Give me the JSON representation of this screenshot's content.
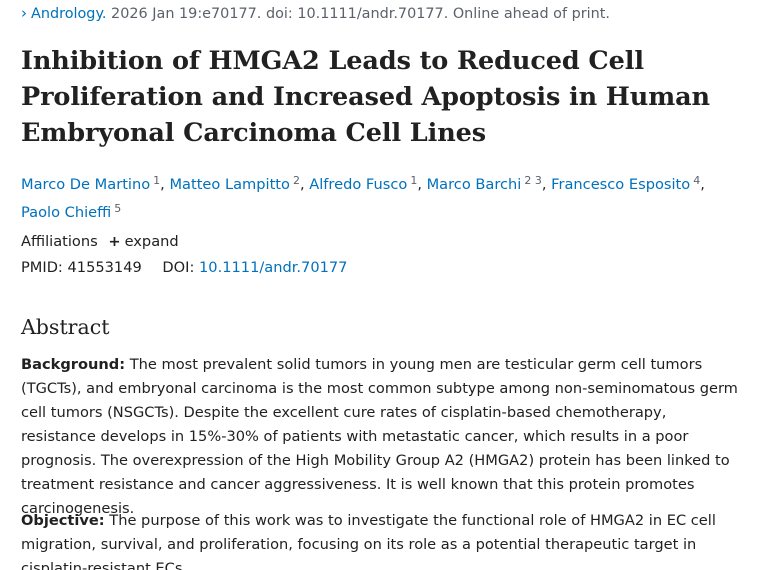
{
  "citation": {
    "chevron": "chevron-right-icon",
    "journal": "Andrology.",
    "details": " 2026 Jan 19:e70177. doi: 10.1111/andr.70177. Online ahead of print."
  },
  "title": "Inhibition of HMGA2 Leads to Reduced Cell Proliferation and Increased Apoptosis in Human Embryonal Carcinoma Cell Lines",
  "authors": [
    {
      "name": "Marco De Martino",
      "sup": "1"
    },
    {
      "name": "Matteo Lampitto",
      "sup": "2"
    },
    {
      "name": "Alfredo Fusco",
      "sup": "1"
    },
    {
      "name": "Marco Barchi",
      "sup": "2 3"
    },
    {
      "name": "Francesco Esposito",
      "sup": "4"
    },
    {
      "name": "Paolo Chieffi",
      "sup": "5"
    }
  ],
  "affiliations": {
    "label": "Affiliations",
    "expand_label": "expand"
  },
  "identifiers": {
    "pmid_label": "PMID:",
    "pmid": "41553149",
    "doi_label": "DOI:",
    "doi": "10.1111/andr.70177"
  },
  "abstract": {
    "heading": "Abstract",
    "background_label": "Background:",
    "background_text": " The most prevalent solid tumors in young men are testicular germ cell tumors (TGCTs), and embryonal carcinoma is the most common subtype among non-seminomatous germ cell tumors (NSGCTs). Despite the excellent cure rates of cisplatin-based chemotherapy, resistance develops in 15%-30% of patients with metastatic cancer, which results in a poor prognosis. The overexpression of the High Mobility Group A2 (HMGA2) protein has been linked to treatment resistance and cancer aggressiveness. It is well known that this protein promotes carcinogenesis.",
    "objective_label": "Objective:",
    "objective_text": " The purpose of this work was to investigate the functional role of HMGA2 in EC cell migration, survival, and proliferation, focusing on its role as a potential therapeutic target in cisplatin-resistant ECs."
  },
  "colors": {
    "link": "#0071bc",
    "text": "#212121",
    "muted": "#5b616b"
  }
}
